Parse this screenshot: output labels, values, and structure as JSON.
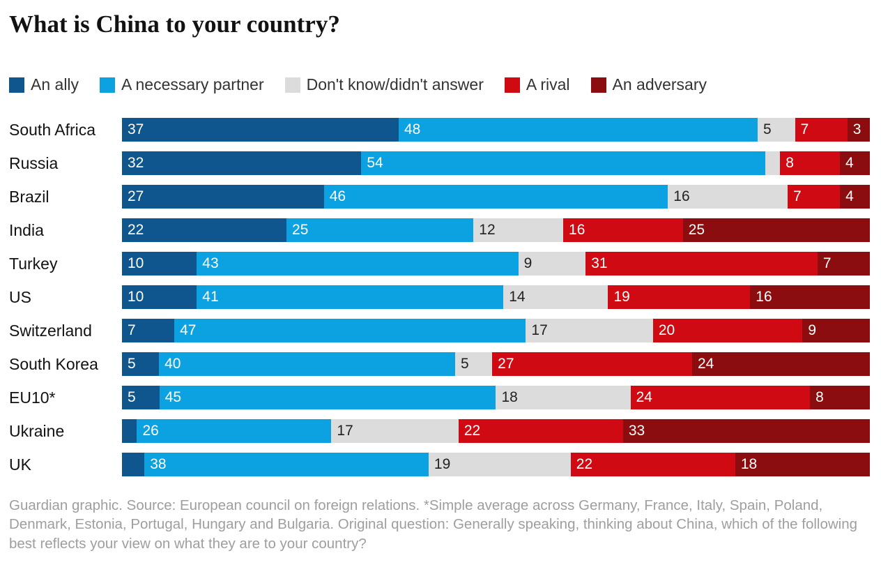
{
  "title": "What is China to your country?",
  "footer": "Guardian graphic. Source: European council on foreign relations. *Simple average across Germany, France, Italy, Spain, Poland, Denmark, Estonia, Portugal, Hungary and Bulgaria. Original question: Generally speaking, thinking about China, which of the following best reflects your view on what they are to your country?",
  "colors": {
    "ally": "#0e568d",
    "necessary_partner": "#0ca1e0",
    "dont_know": "#dcdcdc",
    "rival": "#cf0a12",
    "adversary": "#8b0d10",
    "label_on_dark": "#ffffff",
    "label_on_light": "#222222"
  },
  "chart_data": {
    "type": "bar",
    "stacked": true,
    "orientation": "horizontal",
    "unit": "percent",
    "x_range": [
      0,
      100
    ],
    "grid": false,
    "legend_position": "top",
    "title": "What is China to your country?",
    "categories": [
      "South Africa",
      "Russia",
      "Brazil",
      "India",
      "Turkey",
      "US",
      "Switzerland",
      "South Korea",
      "EU10*",
      "Ukraine",
      "UK"
    ],
    "series": [
      {
        "name": "An ally",
        "color": "#0e568d",
        "values": [
          37,
          32,
          27,
          22,
          10,
          10,
          7,
          5,
          5,
          2,
          3
        ],
        "display_labels": [
          "37",
          "32",
          "27",
          "22",
          "10",
          "10",
          "7",
          "5",
          "5",
          "",
          ""
        ]
      },
      {
        "name": "A necessary partner",
        "color": "#0ca1e0",
        "values": [
          48,
          54,
          46,
          25,
          43,
          41,
          47,
          40,
          45,
          26,
          38
        ],
        "display_labels": [
          "48",
          "54",
          "46",
          "25",
          "43",
          "41",
          "47",
          "40",
          "45",
          "26",
          "38"
        ]
      },
      {
        "name": "Don't know/didn't answer",
        "color": "#dcdcdc",
        "values": [
          5,
          2,
          16,
          12,
          9,
          14,
          17,
          5,
          18,
          17,
          19
        ],
        "display_labels": [
          "5",
          "",
          "16",
          "12",
          "9",
          "14",
          "17",
          "5",
          "18",
          "17",
          "19"
        ]
      },
      {
        "name": "A rival",
        "color": "#cf0a12",
        "values": [
          7,
          8,
          7,
          16,
          31,
          19,
          20,
          27,
          24,
          22,
          22
        ],
        "display_labels": [
          "7",
          "8",
          "7",
          "16",
          "31",
          "19",
          "20",
          "27",
          "24",
          "22",
          "22"
        ]
      },
      {
        "name": "An adversary",
        "color": "#8b0d10",
        "values": [
          3,
          4,
          4,
          25,
          7,
          16,
          9,
          24,
          8,
          33,
          18
        ],
        "display_labels": [
          "3",
          "4",
          "4",
          "25",
          "7",
          "16",
          "9",
          "24",
          "8",
          "33",
          "18"
        ]
      }
    ]
  }
}
